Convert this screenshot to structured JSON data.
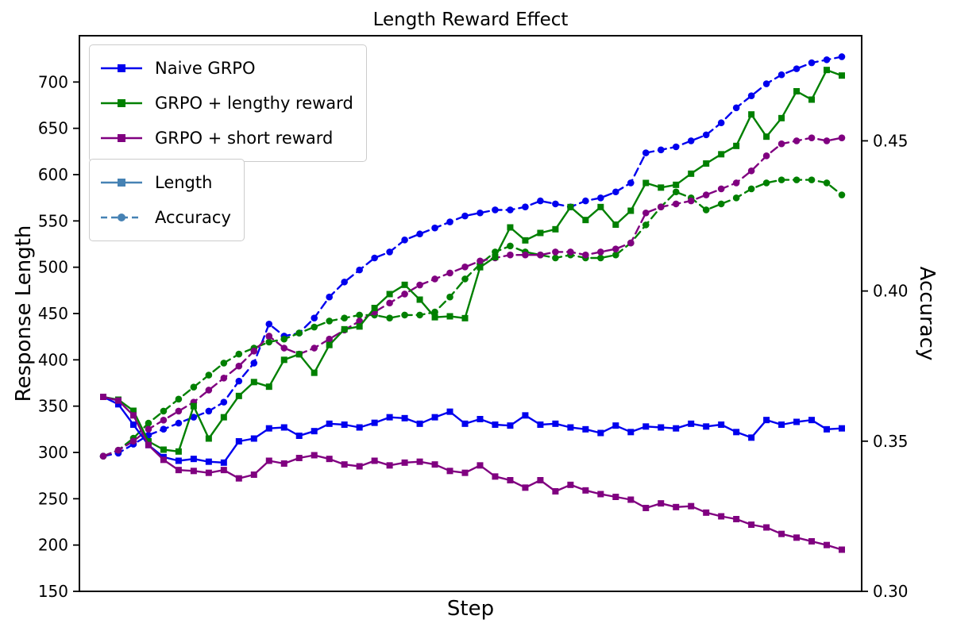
{
  "chart_data": {
    "type": "line",
    "title": "Length Reward Effect",
    "xlabel": "Step",
    "ylabel_left": "Response Length",
    "ylabel_right": "Accuracy",
    "ylim_left": [
      150,
      750
    ],
    "ylim_right": [
      0.3,
      0.485
    ],
    "yticks_left": [
      150,
      200,
      250,
      300,
      350,
      400,
      450,
      500,
      550,
      600,
      650,
      700
    ],
    "yticks_right": [
      0.3,
      0.35,
      0.4,
      0.45
    ],
    "xticks": [],
    "grid": false,
    "legend_position": "upper left",
    "series": [
      {
        "name": "Naive GRPO - Length",
        "group": "Naive GRPO",
        "metric": "Length",
        "axis": "left",
        "line_style": "solid",
        "marker": "square",
        "color": "#0000ee",
        "values": [
          360,
          352,
          330,
          308,
          295,
          291,
          293,
          290,
          289,
          312,
          315,
          326,
          327,
          318,
          323,
          331,
          330,
          327,
          332,
          338,
          337,
          331,
          338,
          344,
          331,
          336,
          330,
          329,
          340,
          330,
          331,
          327,
          325,
          321,
          329,
          322,
          328,
          327,
          326,
          331,
          328,
          330,
          322,
          316,
          335,
          330,
          333,
          335,
          325,
          326
        ]
      },
      {
        "name": "GRPO + lengthy reward - Length",
        "group": "GRPO + lengthy reward",
        "metric": "Length",
        "axis": "left",
        "line_style": "solid",
        "marker": "square",
        "color": "#008000",
        "values": [
          360,
          357,
          345,
          312,
          303,
          301,
          350,
          315,
          338,
          361,
          376,
          371,
          400,
          406,
          386,
          416,
          433,
          436,
          456,
          471,
          481,
          465,
          446,
          447,
          445,
          500,
          511,
          543,
          529,
          537,
          541,
          565,
          551,
          565,
          546,
          561,
          591,
          586,
          589,
          601,
          612,
          622,
          631,
          665,
          641,
          661,
          690,
          681,
          713,
          707
        ]
      },
      {
        "name": "GRPO + short reward - Length",
        "group": "GRPO + short reward",
        "metric": "Length",
        "axis": "left",
        "line_style": "solid",
        "marker": "square",
        "color": "#800080",
        "values": [
          360,
          356,
          340,
          308,
          292,
          281,
          280,
          278,
          281,
          272,
          276,
          291,
          288,
          294,
          297,
          293,
          287,
          285,
          291,
          286,
          289,
          290,
          287,
          280,
          278,
          286,
          274,
          270,
          262,
          270,
          258,
          265,
          259,
          255,
          252,
          249,
          240,
          245,
          241,
          242,
          235,
          231,
          228,
          222,
          219,
          212,
          208,
          204,
          200,
          195
        ]
      },
      {
        "name": "Naive GRPO - Accuracy",
        "group": "Naive GRPO",
        "metric": "Accuracy",
        "axis": "right",
        "line_style": "dashed",
        "marker": "circle",
        "color": "#0000ee",
        "values": [
          0.345,
          0.346,
          0.349,
          0.352,
          0.354,
          0.356,
          0.358,
          0.36,
          0.363,
          0.37,
          0.376,
          0.389,
          0.385,
          0.386,
          0.391,
          0.398,
          0.403,
          0.407,
          0.411,
          0.413,
          0.417,
          0.419,
          0.421,
          0.423,
          0.425,
          0.426,
          0.427,
          0.427,
          0.428,
          0.43,
          0.429,
          0.428,
          0.43,
          0.431,
          0.433,
          0.436,
          0.446,
          0.447,
          0.448,
          0.45,
          0.452,
          0.456,
          0.461,
          0.465,
          0.469,
          0.472,
          0.474,
          0.476,
          0.477,
          0.478
        ]
      },
      {
        "name": "GRPO + lengthy reward - Accuracy",
        "group": "GRPO + lengthy reward",
        "metric": "Accuracy",
        "axis": "right",
        "line_style": "dashed",
        "marker": "circle",
        "color": "#008000",
        "values": [
          0.345,
          0.347,
          0.351,
          0.356,
          0.36,
          0.364,
          0.368,
          0.372,
          0.376,
          0.379,
          0.381,
          0.383,
          0.384,
          0.386,
          0.388,
          0.39,
          0.391,
          0.392,
          0.392,
          0.391,
          0.392,
          0.392,
          0.393,
          0.398,
          0.404,
          0.409,
          0.413,
          0.415,
          0.413,
          0.412,
          0.411,
          0.412,
          0.411,
          0.411,
          0.412,
          0.416,
          0.422,
          0.428,
          0.433,
          0.431,
          0.427,
          0.429,
          0.431,
          0.434,
          0.436,
          0.437,
          0.437,
          0.437,
          0.436,
          0.432
        ]
      },
      {
        "name": "GRPO + short reward - Accuracy",
        "group": "GRPO + short reward",
        "metric": "Accuracy",
        "axis": "right",
        "line_style": "dashed",
        "marker": "circle",
        "color": "#800080",
        "values": [
          0.345,
          0.347,
          0.35,
          0.354,
          0.357,
          0.36,
          0.363,
          0.367,
          0.371,
          0.375,
          0.38,
          0.385,
          0.381,
          0.379,
          0.381,
          0.384,
          0.387,
          0.39,
          0.393,
          0.396,
          0.399,
          0.402,
          0.404,
          0.406,
          0.408,
          0.41,
          0.411,
          0.412,
          0.412,
          0.412,
          0.413,
          0.413,
          0.412,
          0.413,
          0.414,
          0.416,
          0.426,
          0.428,
          0.429,
          0.43,
          0.432,
          0.434,
          0.436,
          0.44,
          0.445,
          0.449,
          0.45,
          0.451,
          0.45,
          0.451
        ]
      }
    ]
  },
  "legend": {
    "color_entries": [
      {
        "label": "Naive GRPO"
      },
      {
        "label": "GRPO + lengthy reward"
      },
      {
        "label": "GRPO + short reward"
      }
    ],
    "style_entries": [
      {
        "label": "Length"
      },
      {
        "label": "Accuracy"
      }
    ],
    "style_color": "#4682b4"
  }
}
